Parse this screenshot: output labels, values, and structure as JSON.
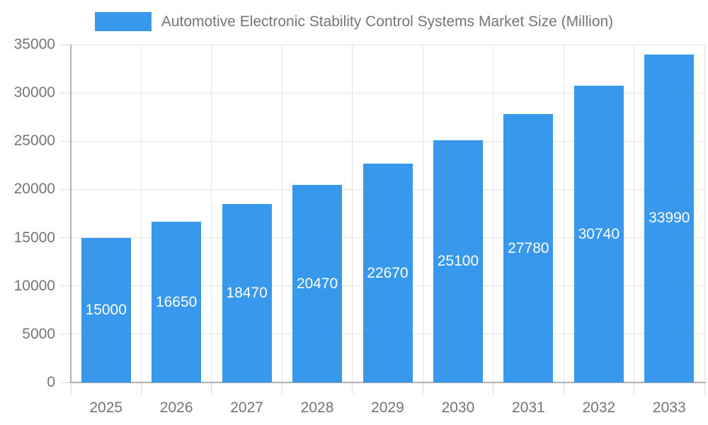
{
  "legend": {
    "label": "Automotive Electronic Stability Control Systems Market Size (Million)"
  },
  "chart_data": {
    "type": "bar",
    "title": "Automotive Electronic Stability Control Systems Market Size (Million)",
    "series_name": "Automotive Electronic Stability Control Systems Market Size (Million)",
    "categories": [
      "2025",
      "2026",
      "2027",
      "2028",
      "2029",
      "2030",
      "2031",
      "2032",
      "2033"
    ],
    "values": [
      15000,
      16650,
      18470,
      20470,
      22670,
      25100,
      27780,
      30740,
      33990
    ],
    "value_labels": [
      "15000",
      "16650",
      "18470",
      "20470",
      "22670",
      "25100",
      "27780",
      "30740",
      "33990"
    ],
    "xlabel": "",
    "ylabel": "",
    "ylim": [
      0,
      35000
    ],
    "ytick_step": 5000,
    "ytick_labels": [
      "0",
      "5000",
      "10000",
      "15000",
      "20000",
      "25000",
      "30000",
      "35000"
    ],
    "grid": true,
    "legend_position": "top",
    "colors": {
      "bar": "#3898ec",
      "value_label": "#ffffff",
      "gridline": "#e3e3e3",
      "tick": "#dddddd",
      "axis_line": "#b0b0b0",
      "text": "#757575",
      "background": "#ffffff"
    }
  }
}
